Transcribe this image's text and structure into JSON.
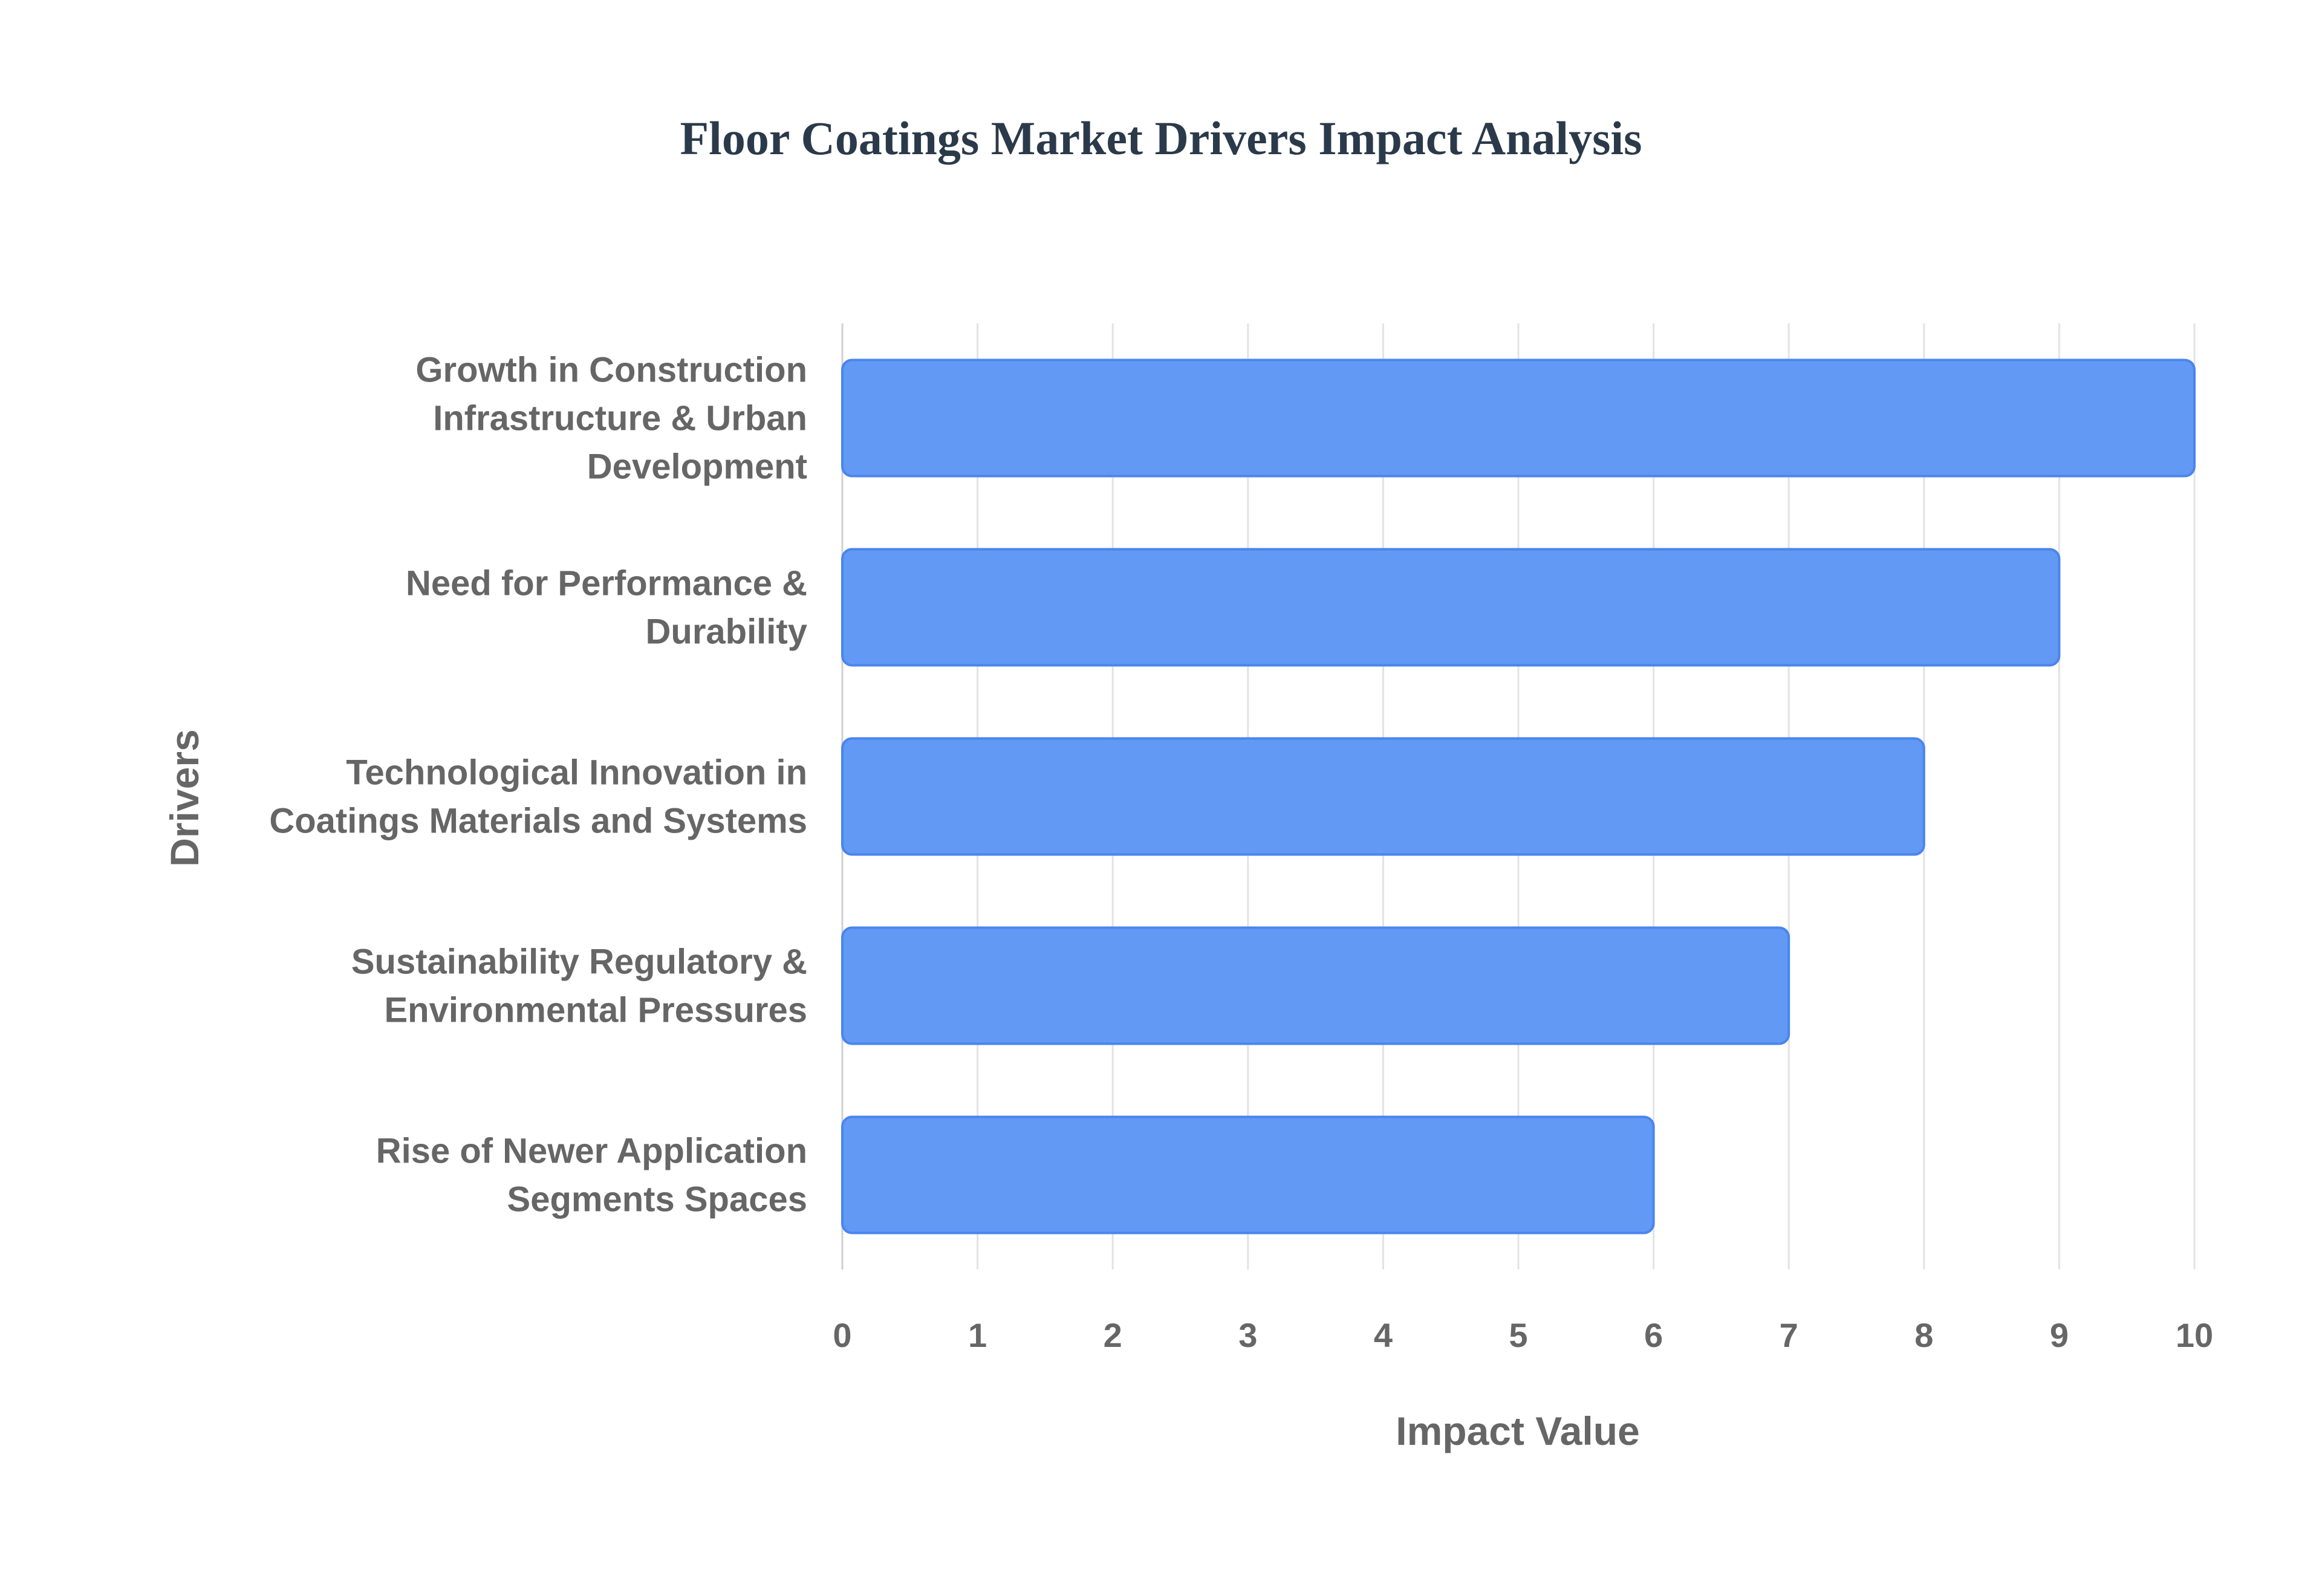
{
  "chart_data": {
    "type": "bar",
    "orientation": "horizontal",
    "title": "Floor Coatings Market Drivers Impact Analysis",
    "xlabel": "Impact Value",
    "ylabel": "Drivers",
    "xlim": [
      0,
      10
    ],
    "x_ticks": [
      "0",
      "1",
      "2",
      "3",
      "4",
      "5",
      "6",
      "7",
      "8",
      "9",
      "10"
    ],
    "grid": true,
    "legend": "none",
    "categories": [
      [
        "Growth in Construction",
        "Infrastructure & Urban",
        "Development"
      ],
      [
        "Need for Performance &",
        "Durability"
      ],
      [
        "Technological Innovation in",
        "Coatings Materials and Systems"
      ],
      [
        "Sustainability Regulatory &",
        "Environmental Pressures"
      ],
      [
        "Rise of Newer Application",
        "Segments Spaces"
      ]
    ],
    "values": [
      10,
      9,
      8,
      7,
      6
    ],
    "colors": {
      "bar_fill": "#6199f4",
      "bar_stroke": "#4a85ee"
    }
  }
}
